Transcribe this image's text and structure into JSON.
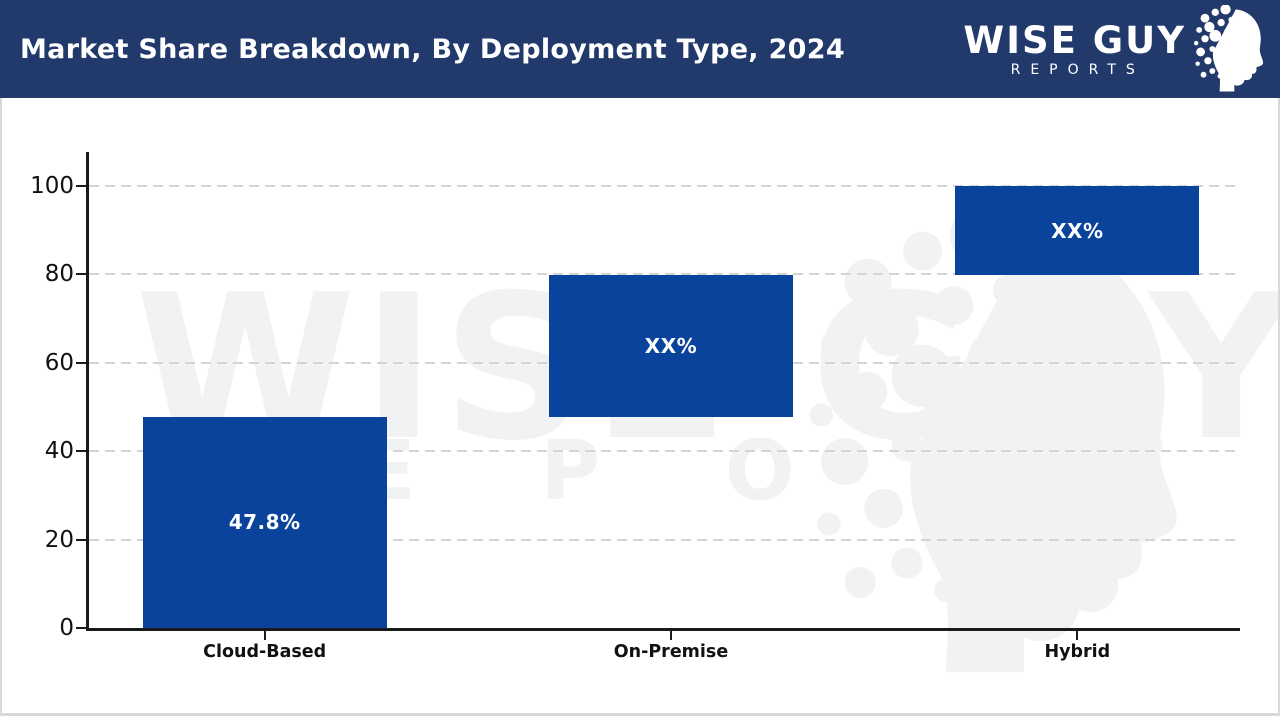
{
  "header": {
    "title": "Market Share Breakdown, By Deployment Type, 2024",
    "logo": {
      "line1": "WISE GUY",
      "line2": "REPORTS"
    }
  },
  "watermark": {
    "line1": "WISE GUY",
    "line2": "REPORTS"
  },
  "chart_data": {
    "type": "bar",
    "subtype": "waterfall-stacked-range",
    "title": "Market Share Breakdown, By Deployment Type, 2024",
    "categories": [
      "Cloud-Based",
      "On-Premise",
      "Hybrid"
    ],
    "segments": [
      {
        "category": "Cloud-Based",
        "from": 0,
        "to": 47.8,
        "value": 47.8,
        "label": "47.8%"
      },
      {
        "category": "On-Premise",
        "from": 47.8,
        "to": 79.8,
        "value": 32.0,
        "label": "XX%"
      },
      {
        "category": "Hybrid",
        "from": 79.8,
        "to": 100,
        "value": 20.2,
        "label": "XX%"
      }
    ],
    "yticks": [
      0,
      20,
      40,
      60,
      80,
      100
    ],
    "ylim": [
      0,
      107.7
    ],
    "xlabel": "",
    "ylabel": "",
    "grid": "horizontal-dashed",
    "legend": "none",
    "bar_color": "#09439b",
    "bar_label_color": "#ffffff",
    "axis_color": "#1a1a1a",
    "grid_color": "#d4d4d4",
    "header_bg_color": "#213a6b",
    "watermark_color": "#f1f2f4"
  }
}
